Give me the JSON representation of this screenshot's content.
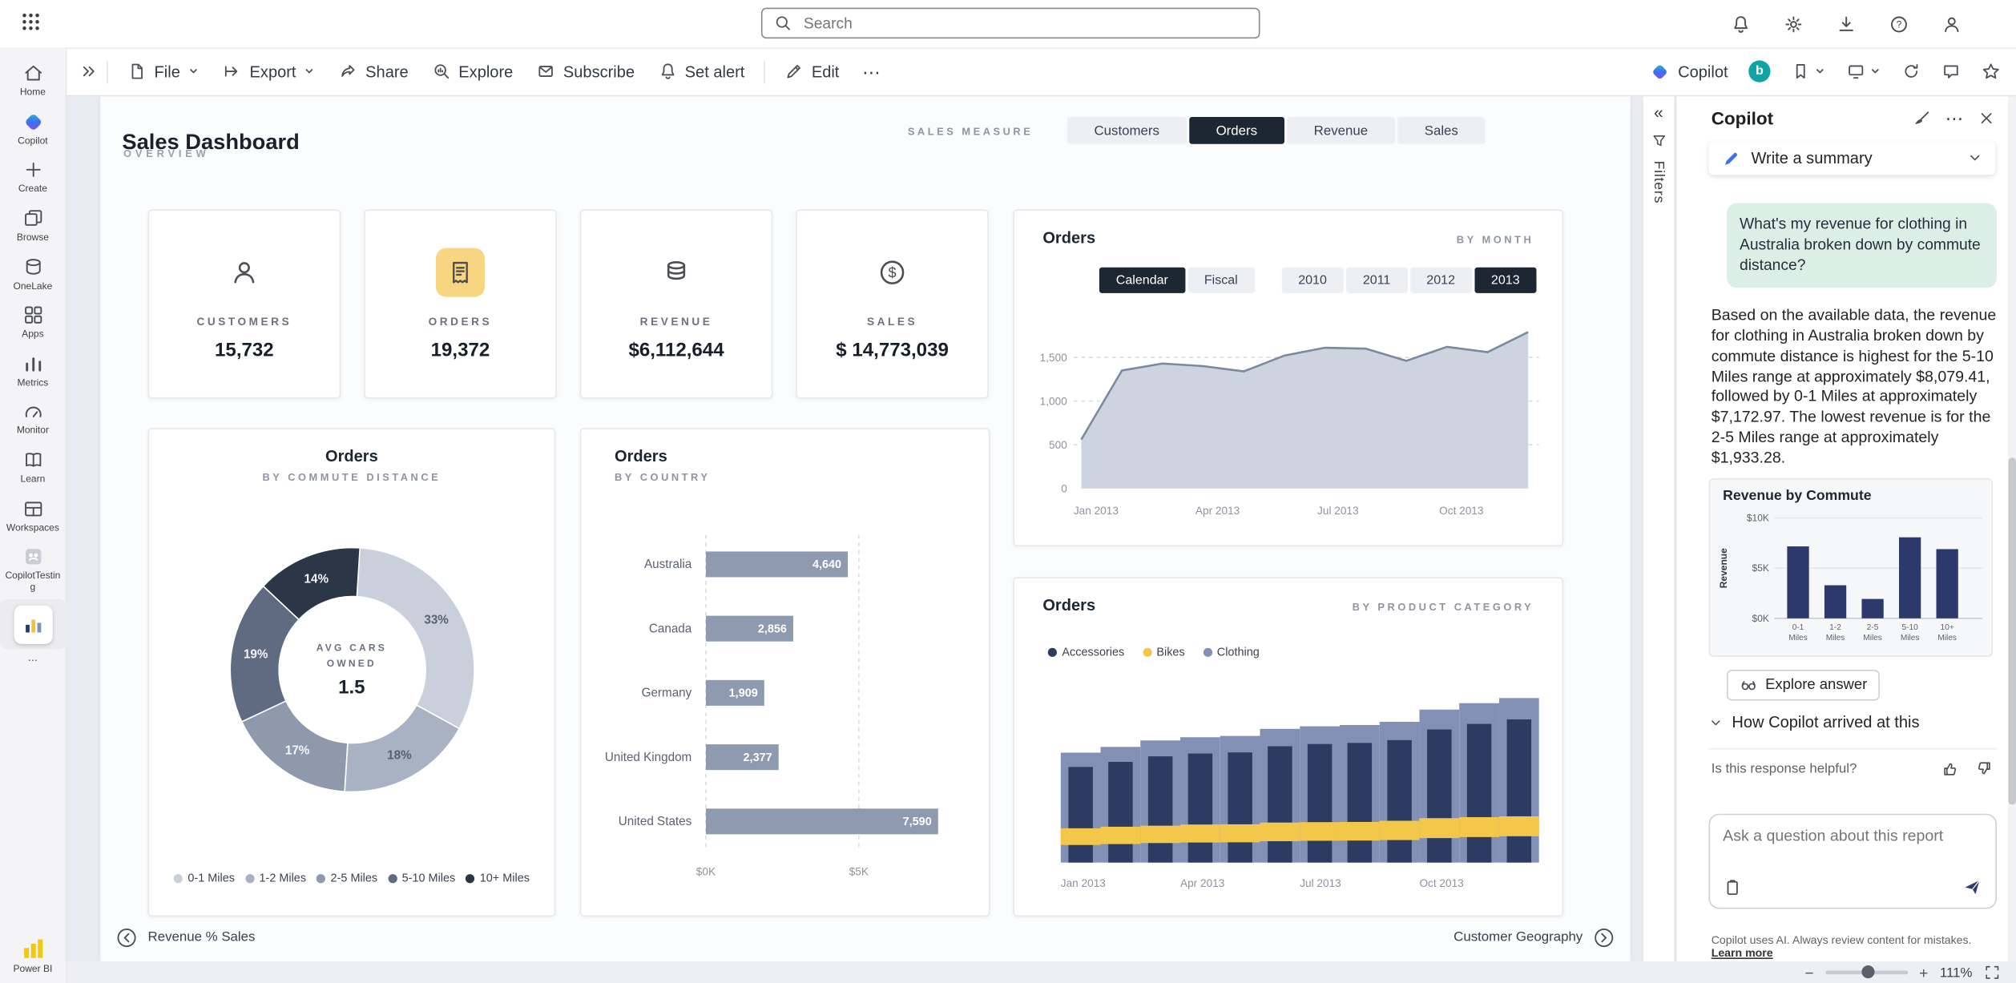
{
  "topbar": {
    "search_placeholder": "Search"
  },
  "toolbar": {
    "file": "File",
    "export": "Export",
    "share": "Share",
    "explore": "Explore",
    "subscribe": "Subscribe",
    "set_alert": "Set alert",
    "edit": "Edit",
    "more": "⋯",
    "copilot": "Copilot",
    "badge": "b"
  },
  "sidebar": {
    "items": [
      {
        "label": "Home"
      },
      {
        "label": "Copilot"
      },
      {
        "label": "Create"
      },
      {
        "label": "Browse"
      },
      {
        "label": "OneLake"
      },
      {
        "label": "Apps"
      },
      {
        "label": "Metrics"
      },
      {
        "label": "Monitor"
      },
      {
        "label": "Learn"
      },
      {
        "label": "Workspaces"
      },
      {
        "label": "CopilotTesting"
      }
    ],
    "more": "⋯",
    "power_bi": "Power BI"
  },
  "report": {
    "title": "Sales Dashboard",
    "subtitle": "OVERVIEW",
    "measure_label": "SALES MEASURE",
    "measure_tabs": [
      "Customers",
      "Orders",
      "Revenue",
      "Sales"
    ],
    "selected_tab": "Orders",
    "kpis": [
      {
        "label": "CUSTOMERS",
        "value": "15,732"
      },
      {
        "label": "ORDERS",
        "value": "19,372"
      },
      {
        "label": "REVENUE",
        "value": "$6,112,644"
      },
      {
        "label": "SALES",
        "value": "$ 14,773,039"
      }
    ],
    "nav_prev": "Revenue % Sales",
    "nav_next": "Customer Geography"
  },
  "cards": {
    "by_month": {
      "title": "Orders",
      "tag": "BY MONTH",
      "toggles": [
        "Calendar",
        "Fiscal"
      ],
      "selected_toggle": "Calendar",
      "years": [
        "2010",
        "2011",
        "2012",
        "2013"
      ],
      "selected_year": "2013"
    },
    "commute": {
      "title": "Orders",
      "tag": "BY COMMUTE DISTANCE",
      "center_label": "AVG CARS OWNED",
      "center_value": "1.5"
    },
    "country": {
      "title": "Orders",
      "tag": "BY COUNTRY"
    },
    "category": {
      "title": "Orders",
      "tag": "BY PRODUCT CATEGORY"
    }
  },
  "filters": {
    "label": "Filters"
  },
  "copilot": {
    "title": "Copilot",
    "write_summary": "Write a summary",
    "user_question": "What's my revenue for clothing in Australia broken down by commute distance?",
    "answer": "Based on the available data, the revenue for clothing in Australia broken down by commute distance is highest for the 5-10 Miles range at approximately $8,079.41, followed by 0-1 Miles at approximately $7,172.97. The lowest revenue is for the 2-5 Miles range at approximately $1,933.28.",
    "chart_title": "Revenue by Commute",
    "chart_ylabel": "Revenue",
    "explore": "Explore answer",
    "how": "How Copilot arrived at this",
    "helpful": "Is this response helpful?",
    "input_placeholder": "Ask a question about this report",
    "footer": "Copilot uses AI. Always review content for mistakes.",
    "learn_more": "Learn more"
  },
  "statusbar": {
    "zoom": "111%"
  },
  "colors": {
    "accent_dark": "#1d2633",
    "kpi_selected_tile": "#f7d581",
    "area_fill": "#cdd4e0",
    "area_line": "#7b899c",
    "bar_gray_blue": "#8e9ab0",
    "copilot_bubble": "#dcefe7",
    "powerbi_yellow": "#f2c811"
  },
  "chart_data": [
    {
      "id": "orders-by-month",
      "type": "area",
      "title": "Orders by Month",
      "series_name": "Orders 2013",
      "x": [
        "Jan 2013",
        "Feb 2013",
        "Mar 2013",
        "Apr 2013",
        "May 2013",
        "Jun 2013",
        "Jul 2013",
        "Aug 2013",
        "Sep 2013",
        "Oct 2013",
        "Nov 2013",
        "Dec 2013"
      ],
      "values": [
        560,
        1350,
        1430,
        1400,
        1340,
        1520,
        1610,
        1600,
        1460,
        1620,
        1560,
        1790
      ],
      "ylim": [
        0,
        1900
      ],
      "yticks": [
        1500,
        1000,
        500,
        0
      ],
      "ytick_labels": [
        "1,500",
        "1,000",
        "500",
        "0"
      ],
      "xtick_labels": [
        "Jan 2013",
        "Apr 2013",
        "Jul 2013",
        "Oct 2013"
      ],
      "grid": "dashed-horizontal"
    },
    {
      "id": "orders-by-commute-distance",
      "type": "pie",
      "donut": true,
      "title": "Orders by Commute Distance",
      "categories": [
        "0-1 Miles",
        "1-2 Miles",
        "2-5 Miles",
        "5-10 Miles",
        "10+ Miles"
      ],
      "values_pct": [
        33,
        18,
        17,
        19,
        14
      ],
      "colors": [
        "#c9d0dc",
        "#a9b2c2",
        "#8f99ac",
        "#5f6b80",
        "#2b3646"
      ],
      "label_colors": [
        "#5a6170",
        "#5a6170",
        "#f4f5f7",
        "#f4f5f7",
        "#f4f5f7"
      ],
      "center_label": "AVG CARS OWNED",
      "center_value": "1.5"
    },
    {
      "id": "orders-by-country",
      "type": "bar",
      "orientation": "horizontal",
      "title": "Orders by Country",
      "categories": [
        "Australia",
        "Canada",
        "Germany",
        "United Kingdom",
        "United States"
      ],
      "values": [
        4640,
        2856,
        1909,
        2377,
        7590
      ],
      "value_labels": [
        "4,640",
        "2,856",
        "1,909",
        "2,377",
        "7,590"
      ],
      "xlim": [
        0,
        7900
      ],
      "xticks": [
        0,
        5000
      ],
      "xtick_labels": [
        "$0K",
        "$5K"
      ],
      "bar_color": "#8e9ab0"
    },
    {
      "id": "orders-by-product-category",
      "type": "area",
      "stacked": true,
      "title": "Orders by Product Category",
      "x": [
        "Jan 2013",
        "Feb 2013",
        "Mar 2013",
        "Apr 2013",
        "May 2013",
        "Jun 2013",
        "Jul 2013",
        "Aug 2013",
        "Sep 2013",
        "Oct 2013",
        "Nov 2013",
        "Dec 2013"
      ],
      "series": [
        {
          "name": "Accessories",
          "color": "#2d3b63",
          "values": [
            560,
            580,
            590,
            600,
            600,
            620,
            630,
            630,
            640,
            650,
            660,
            660
          ]
        },
        {
          "name": "Bikes",
          "color": "#f3c84a",
          "values": [
            130,
            135,
            135,
            140,
            140,
            145,
            145,
            145,
            150,
            155,
            155,
            155
          ]
        },
        {
          "name": "Clothing",
          "color": "#8290b6",
          "values": [
            165,
            185,
            225,
            235,
            245,
            275,
            285,
            295,
            305,
            385,
            425,
            465
          ]
        }
      ],
      "xtick_labels": [
        "Jan 2013",
        "Apr 2013",
        "Jul 2013",
        "Oct 2013"
      ]
    },
    {
      "id": "revenue-by-commute",
      "type": "bar",
      "title": "Revenue by Commute",
      "ylabel": "Revenue",
      "categories": [
        "0-1 Miles",
        "1-2 Miles",
        "2-5 Miles",
        "5-10 Miles",
        "10+ Miles"
      ],
      "values": [
        7172.97,
        3300,
        1933.28,
        8079.41,
        6900
      ],
      "ylim": [
        0,
        10000
      ],
      "yticks": [
        10000,
        5000,
        0
      ],
      "ytick_labels": [
        "$10K",
        "$5K",
        "$0K"
      ],
      "bar_color": "#2c3a6b"
    }
  ]
}
